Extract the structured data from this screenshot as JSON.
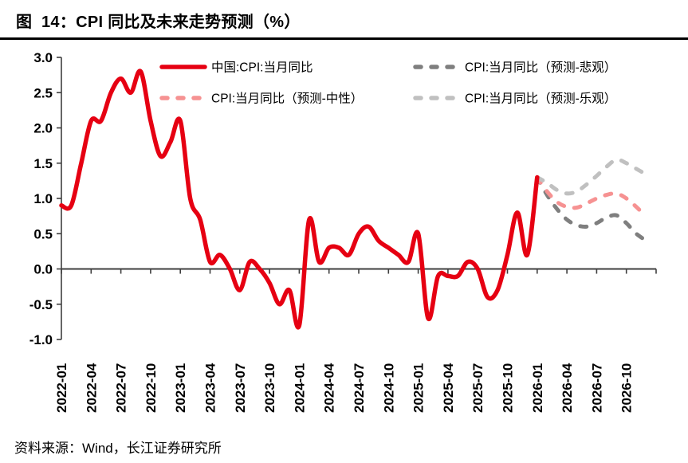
{
  "header": {
    "title": "图  14：CPI 同比及未来走势预测（%）"
  },
  "footer": {
    "source": "资料来源：Wind，长江证券研究所"
  },
  "chart_data": {
    "type": "line",
    "title": "图 14：CPI 同比及未来走势预测（%）",
    "xlabel": "",
    "ylabel": "",
    "grid": false,
    "legend_position": "top",
    "axis_color": "#3f3f3f",
    "y_axis": {
      "min": -1.0,
      "max": 3.0,
      "step": 0.5
    },
    "x_axis": {
      "domain": [
        "2022-01",
        "2027-01"
      ],
      "tick_interval_months": 3,
      "tick_labels": [
        "2022-01",
        "2022-04",
        "2022-07",
        "2022-10",
        "2023-01",
        "2023-04",
        "2023-07",
        "2023-10",
        "2024-01",
        "2024-04",
        "2024-07",
        "2024-10",
        "2025-01",
        "2025-04",
        "2025-07",
        "2025-10",
        "2026-01",
        "2026-04",
        "2026-07",
        "2026-10"
      ]
    },
    "series": [
      {
        "key": "actual",
        "name": "中国:CPI:当月同比",
        "color": "#e60012",
        "style": "solid",
        "start_month": "2022-01",
        "values": [
          0.9,
          0.9,
          1.5,
          2.1,
          2.1,
          2.5,
          2.7,
          2.5,
          2.8,
          2.1,
          1.6,
          1.8,
          2.1,
          1.0,
          0.7,
          0.1,
          0.2,
          0.0,
          -0.3,
          0.1,
          0.0,
          -0.2,
          -0.5,
          -0.3,
          -0.8,
          0.7,
          0.1,
          0.3,
          0.3,
          0.2,
          0.5,
          0.6,
          0.4,
          0.3,
          0.2,
          0.1,
          0.5,
          -0.7,
          -0.1,
          -0.1,
          -0.1,
          0.1,
          0.0,
          -0.4,
          -0.3,
          0.2,
          0.8,
          0.2,
          1.3
        ]
      },
      {
        "key": "pessimistic",
        "name": "CPI:当月同比（预测-悲观）",
        "color": "#7f7f7f",
        "style": "dashed",
        "start_month": "2026-01",
        "values": [
          1.3,
          1.05,
          0.85,
          0.7,
          0.62,
          0.6,
          0.65,
          0.73,
          0.76,
          0.65,
          0.5,
          0.4
        ]
      },
      {
        "key": "neutral",
        "name": "CPI:当月同比（预测-中性）",
        "color": "#f69292",
        "style": "dashed",
        "start_month": "2026-01",
        "values": [
          1.3,
          1.1,
          0.95,
          0.88,
          0.87,
          0.93,
          1.0,
          1.05,
          1.07,
          1.0,
          0.88,
          0.74
        ]
      },
      {
        "key": "optimistic",
        "name": "CPI:当月同比（预测-乐观）",
        "color": "#c0c0c0",
        "style": "dashed",
        "start_month": "2026-01",
        "values": [
          1.3,
          1.22,
          1.12,
          1.07,
          1.1,
          1.2,
          1.32,
          1.45,
          1.55,
          1.5,
          1.42,
          1.34
        ]
      }
    ],
    "legend": {
      "columns": 2,
      "entries": [
        "actual",
        "pessimistic",
        "neutral",
        "optimistic"
      ]
    }
  }
}
